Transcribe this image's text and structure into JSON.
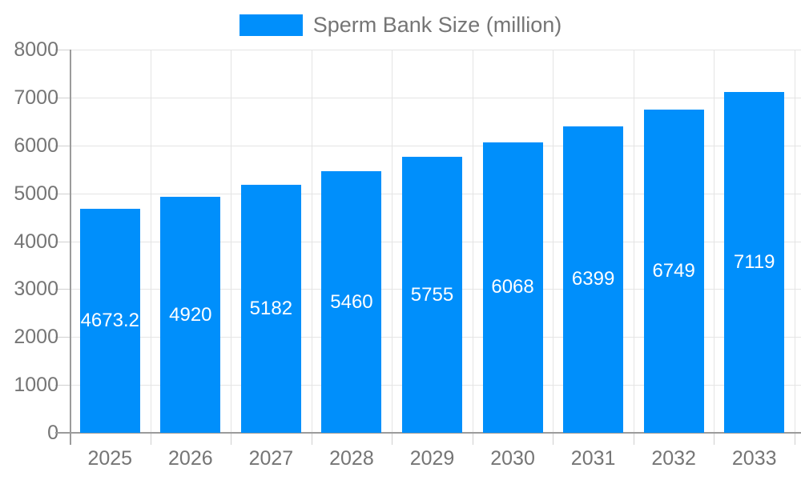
{
  "legend": {
    "label": "Sperm Bank Size (million)"
  },
  "chart_data": {
    "type": "bar",
    "title": "Sperm Bank Size (million)",
    "categories": [
      "2025",
      "2026",
      "2027",
      "2028",
      "2029",
      "2030",
      "2031",
      "2032",
      "2033"
    ],
    "values": [
      4673.2,
      4920,
      5182,
      5460,
      5755,
      6068,
      6399,
      6749,
      7119
    ],
    "bar_labels": [
      "4673.2",
      "4920",
      "5182",
      "5460",
      "5755",
      "6068",
      "6399",
      "6749",
      "7119"
    ],
    "series": [
      {
        "name": "Sperm Bank Size (million)",
        "values": [
          4673.2,
          4920,
          5182,
          5460,
          5755,
          6068,
          6399,
          6749,
          7119
        ]
      }
    ],
    "xlabel": "",
    "ylabel": "",
    "ylim": [
      0,
      8000
    ],
    "ytick_step": 1000,
    "grid": true,
    "legend_position": "top",
    "colors": {
      "bar": "#008FFB",
      "grid": "#e4e4e4",
      "axis": "#9b9b9b",
      "text": "#757575",
      "value_label": "#ffffff"
    }
  }
}
